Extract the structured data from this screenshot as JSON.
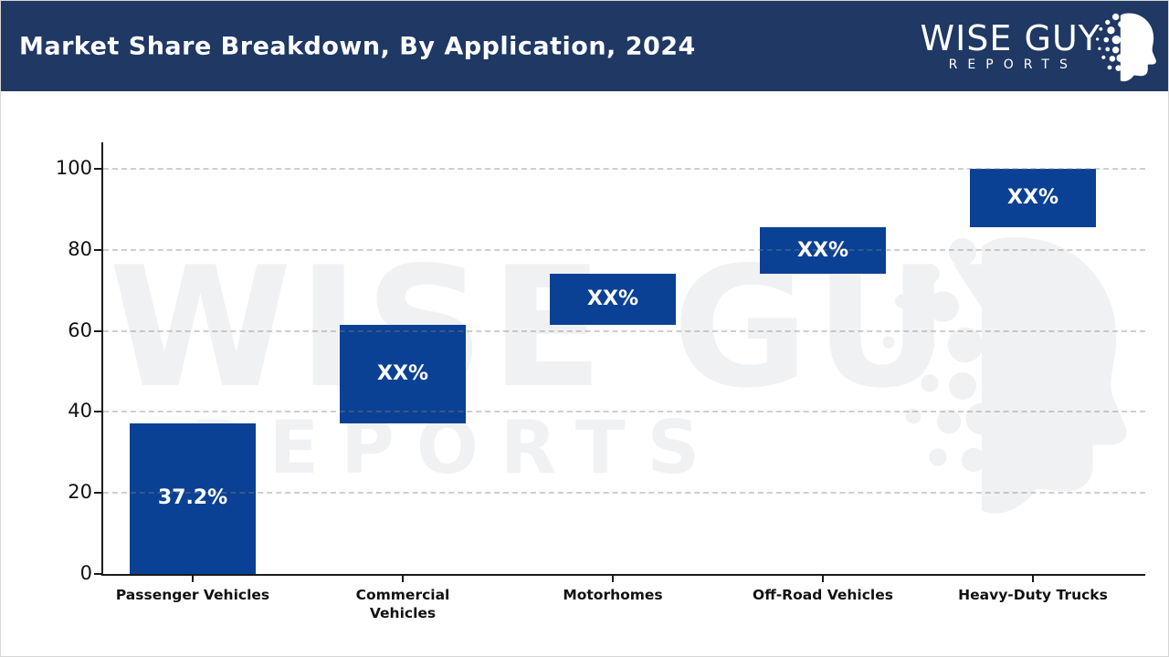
{
  "header": {
    "title": "Market Share Breakdown, By Application, 2024",
    "logo_line1": "WISE GUY",
    "logo_line2": "REPORTS",
    "logo_icon": "dotted-head-profile"
  },
  "watermark": {
    "line1": "WISE GUY",
    "line2": "REPORTS",
    "icon": "dotted-head-profile"
  },
  "chart_data": {
    "type": "bar",
    "subtype": "waterfall",
    "title": "Market Share Breakdown, By Application, 2024",
    "categories": [
      "Passenger Vehicles",
      "Commercial\nVehicles",
      "Motorhomes",
      "Off-Road Vehicles",
      "Heavy-Duty Trucks"
    ],
    "segments": [
      {
        "category": "Passenger Vehicles",
        "start": 0,
        "end": 37.2,
        "label": "37.2%"
      },
      {
        "category": "Commercial Vehicles",
        "start": 37.2,
        "end": 61.5,
        "label": "XX%"
      },
      {
        "category": "Motorhomes",
        "start": 61.5,
        "end": 74.0,
        "label": "XX%"
      },
      {
        "category": "Off-Road Vehicles",
        "start": 74.0,
        "end": 85.5,
        "label": "XX%"
      },
      {
        "category": "Heavy-Duty Trucks",
        "start": 85.5,
        "end": 100.0,
        "label": "XX%"
      }
    ],
    "yticks": [
      0,
      20,
      40,
      60,
      80,
      100
    ],
    "ylim": [
      0,
      106
    ],
    "xlabel": "",
    "ylabel": "",
    "grid": {
      "axis": "y",
      "style": "dashed",
      "drawn_over_bars": true
    },
    "legend": "none"
  },
  "colors": {
    "header_bg": "#1f3864",
    "bar": "#0a4194",
    "watermark": "#f0f1f3",
    "page_bg": "#ffffff",
    "axis": "#1a1a1a",
    "bar_label": "#ffffff"
  }
}
